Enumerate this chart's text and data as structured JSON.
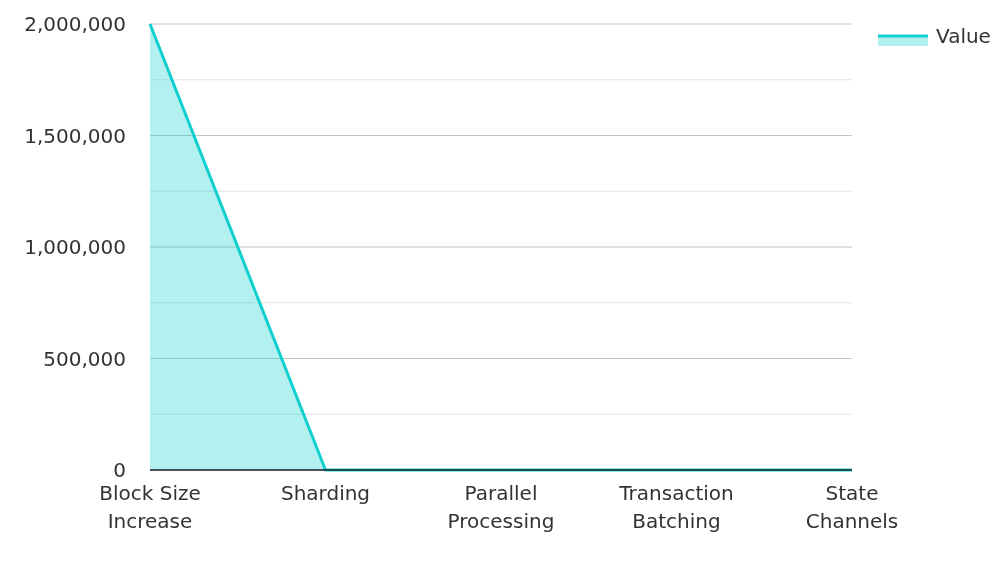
{
  "chart_data": {
    "type": "area",
    "categories": [
      "Block Size Increase",
      "Sharding",
      "Parallel Processing",
      "Transaction Batching",
      "State Channels"
    ],
    "series": [
      {
        "name": "Value",
        "color": "#12cfcf",
        "values": [
          2000000,
          0,
          0,
          0,
          0
        ]
      }
    ],
    "ylim": [
      0,
      2000000
    ],
    "yticks": [
      0,
      {
        "value": 250000,
        "label": null
      },
      {
        "value": 500000,
        "label": "500,000"
      },
      {
        "value": 750000,
        "label": null
      },
      {
        "value": 1000000,
        "label": "1,000,000"
      },
      {
        "value": 1250000,
        "label": null
      },
      {
        "value": 1500000,
        "label": "1,500,000"
      },
      {
        "value": 1750000,
        "label": null
      },
      {
        "value": 2000000,
        "label": "2,000,000"
      }
    ],
    "grid": true,
    "legend": "top right"
  }
}
